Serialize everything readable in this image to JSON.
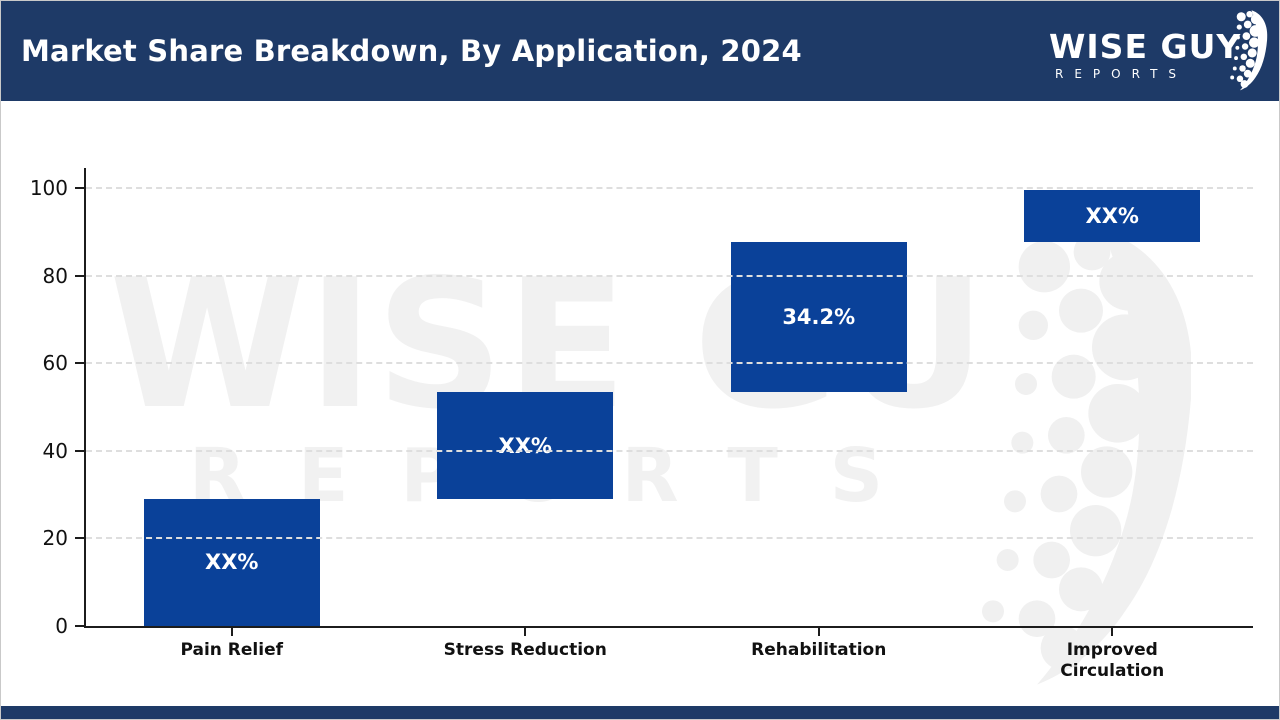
{
  "header": {
    "title": "Market Share Breakdown, By Application, 2024",
    "logo": {
      "line1": "WISE GUY",
      "line2": "REPORTS"
    }
  },
  "watermark": {
    "line1": "WISE GU",
    "line2": "REPORTS"
  },
  "footer": {},
  "chart_data": {
    "type": "bar",
    "subtype": "waterfall-floating-bars",
    "title": "Market Share Breakdown, By Application, 2024",
    "categories": [
      "Pain Relief",
      "Stress Reduction",
      "Rehabilitation",
      "Improved Circulation"
    ],
    "segments": [
      {
        "category": "Pain Relief",
        "start": 0,
        "end": 29,
        "label": "XX%"
      },
      {
        "category": "Stress Reduction",
        "start": 29,
        "end": 53.4,
        "label": "XX%"
      },
      {
        "category": "Rehabilitation",
        "start": 53.4,
        "end": 87.6,
        "label": "34.2%"
      },
      {
        "category": "Improved Circulation",
        "start": 87.6,
        "end": 99.5,
        "label": "XX%"
      }
    ],
    "yticks": [
      0,
      20,
      40,
      60,
      80,
      100
    ],
    "ylim": [
      0,
      105
    ],
    "xlabel": "",
    "ylabel": "",
    "grid": "horizontal-dashed",
    "legend": "none",
    "bar_color": "#0a4199",
    "bar_label_color": "#ffffff"
  },
  "colors": {
    "header_bg": "#1e3a67",
    "footer_bg": "#1e3a67",
    "bar": "#0a4199",
    "grid": "#dedede",
    "axis": "#1c1c1c",
    "watermark": "#f1f1f1"
  }
}
